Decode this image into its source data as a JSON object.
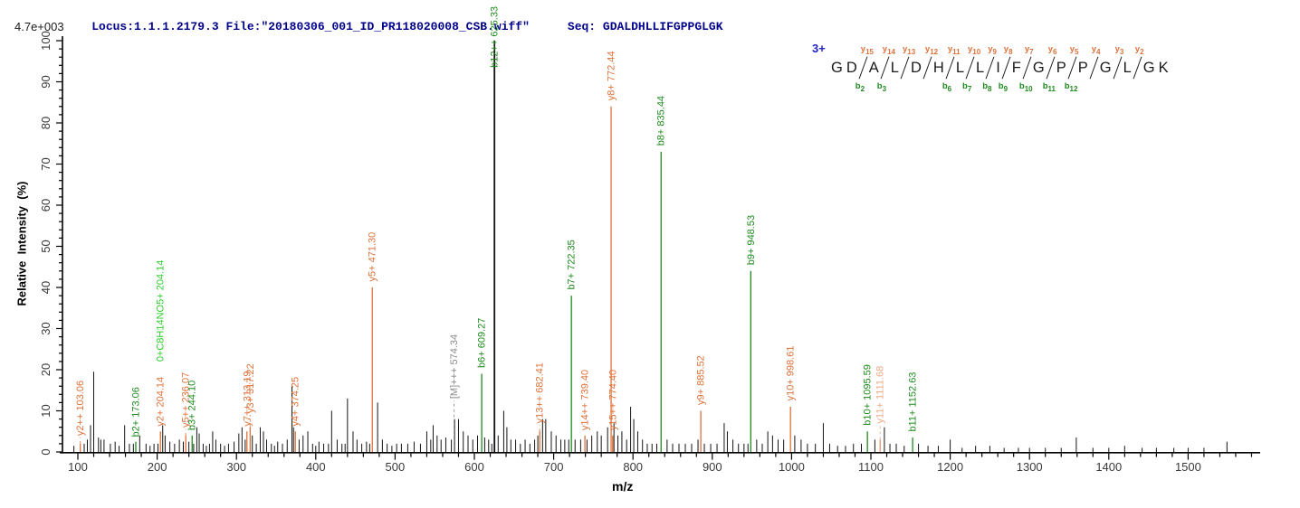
{
  "header": {
    "locus_file": "Locus:1.1.1.2179.3 File:\"20180306_001_ID_PR118020008_CSB.wiff\"",
    "seq_label": "Seq: GDALDHLLIFGPPGLGK"
  },
  "scale_note": "4.7e+003",
  "axes": {
    "x_label": "m/z",
    "y_label": "Relative  Intensity  (%)",
    "x_tick_labels": [
      100,
      200,
      300,
      400,
      500,
      600,
      700,
      800,
      900,
      1000,
      1100,
      1200,
      1300,
      1400,
      1500
    ],
    "y_tick_labels": [
      0,
      10,
      20,
      30,
      40,
      50,
      60,
      70,
      80,
      90,
      100
    ]
  },
  "colors": {
    "y": "#DE7139",
    "b": "#1E8A1E",
    "ox": "#2FCE2F",
    "M": "#8A8A8A",
    "noise": "#141414",
    "axis": "#000000",
    "tick_text": "#3a3a3a",
    "header_text": "#00008B",
    "charge_text": "#2222CC"
  },
  "fragment_map": {
    "charge": "3+",
    "residues": [
      "G",
      "D",
      "A",
      "L",
      "D",
      "H",
      "L",
      "L",
      "I",
      "F",
      "G",
      "P",
      "P",
      "G",
      "L",
      "G",
      "K"
    ],
    "gaps": [
      {
        "after": 2,
        "y": "y15",
        "b": "b2"
      },
      {
        "after": 3,
        "y": "y14",
        "b": "b3"
      },
      {
        "after": 4,
        "y": "y13"
      },
      {
        "after": 5,
        "y": "y12"
      },
      {
        "after": 6,
        "y": "y11",
        "b": "b6"
      },
      {
        "after": 7,
        "y": "y10",
        "b": "b7"
      },
      {
        "after": 8,
        "y": "y9",
        "b": "b8"
      },
      {
        "after": 9,
        "y": "y8",
        "b": "b9"
      },
      {
        "after": 10,
        "y": "y7",
        "b": "b10"
      },
      {
        "after": 11,
        "y": "y6",
        "b": "b11"
      },
      {
        "after": 12,
        "y": "y5",
        "b": "b12"
      },
      {
        "after": 13,
        "y": "y4"
      },
      {
        "after": 14,
        "y": "y3"
      },
      {
        "after": 15,
        "y": "y2"
      }
    ]
  },
  "chart_data": {
    "type": "bar",
    "subtype": "ms2-stick-spectrum",
    "title": "",
    "xlabel": "m/z",
    "ylabel": "Relative Intensity (%)",
    "xlim": [
      78,
      1588
    ],
    "ylim": [
      0,
      100
    ],
    "x_major_step": 100,
    "x_minor_step": 20,
    "y_major_step": 10,
    "y_minor_step": 2,
    "grid": false,
    "base_peak_intensity": "4.7e+003",
    "labeled_peaks": [
      {
        "ion": "y2++",
        "mz": 103.06,
        "intensity": 2,
        "label": "y2++ 103.06",
        "series": "y",
        "ly": 3.5
      },
      {
        "ion": "b2+",
        "mz": 173.06,
        "intensity": 2.5,
        "label": "b2+ 173.06",
        "series": "b",
        "ly": 3.2
      },
      {
        "ion": "y2+",
        "mz": 204.14,
        "intensity": 5,
        "label": "y2+ 204.14",
        "series": "y",
        "ly": 5.8
      },
      {
        "ion": "0+C8H14NO5+",
        "mz": 204.14,
        "intensity": 0,
        "label": "0+C8H14NO5+ 204.14",
        "series": "ox",
        "ly": 21.5,
        "noline": true,
        "no_dash": true
      },
      {
        "ion": "y5++",
        "mz": 236.07,
        "intensity": 4,
        "label": "y5++ 236.07",
        "series": "y",
        "ly": 5.5
      },
      {
        "ion": "b3+",
        "mz": 244.1,
        "intensity": 4,
        "label": "b3+ 244.10",
        "series": "b",
        "ly": 4.8
      },
      {
        "ion": "y7++",
        "mz": 313.19,
        "intensity": 5,
        "label": "y7++ 313.19",
        "series": "y",
        "ly": 5.8
      },
      {
        "ion": "y3+",
        "mz": 317.22,
        "intensity": 6,
        "label": "y3+ 317.22",
        "series": "y",
        "ly": 9
      },
      {
        "ion": "y4+",
        "mz": 374.25,
        "intensity": 5,
        "label": "y4+ 374.25",
        "series": "y",
        "ly": 5.8
      },
      {
        "ion": "y5+",
        "mz": 471.3,
        "intensity": 40,
        "label": "y5+ 471.30",
        "series": "y",
        "ly": 41
      },
      {
        "ion": "[M]+++",
        "mz": 574.34,
        "intensity": 8,
        "label": "[M]+++ 574.34",
        "series": "M",
        "ly": 12.5,
        "noline": true,
        "dash_from": 0.5
      },
      {
        "ion": "b6+",
        "mz": 609.27,
        "intensity": 19,
        "label": "b6+ 609.27",
        "series": "b",
        "ly": 20
      },
      {
        "ion": "b12++",
        "mz": 625.33,
        "intensity": 100,
        "label": "b12++ 625.33",
        "series": "b",
        "ly": 93,
        "line_color": "#111111",
        "line_w": 1.8
      },
      {
        "ion": "y13++",
        "mz": 682.41,
        "intensity": 5,
        "label": "y13++ 682.41",
        "series": "y",
        "ly": 6.5
      },
      {
        "ion": "b7+",
        "mz": 722.35,
        "intensity": 38,
        "label": "b7+ 722.35",
        "series": "b",
        "ly": 39
      },
      {
        "ion": "y14++",
        "mz": 739.4,
        "intensity": 4,
        "label": "y14++ 739.40",
        "series": "y",
        "ly": 4.8
      },
      {
        "ion": "y8+",
        "mz": 772.44,
        "intensity": 84,
        "label": "y8+ 772.44",
        "series": "y",
        "ly": 85
      },
      {
        "ion": "y15++",
        "mz": 774.4,
        "intensity": 4,
        "label": "y15++ 774.40",
        "series": "y",
        "ly": 4.8
      },
      {
        "ion": "b8+",
        "mz": 835.44,
        "intensity": 73,
        "label": "b8+ 835.44",
        "series": "b",
        "ly": 74
      },
      {
        "ion": "y9+",
        "mz": 885.52,
        "intensity": 10,
        "label": "y9+ 885.52",
        "series": "y",
        "ly": 11
      },
      {
        "ion": "b9+",
        "mz": 948.53,
        "intensity": 44,
        "label": "b9+ 948.53",
        "series": "b",
        "ly": 45
      },
      {
        "ion": "y10+",
        "mz": 998.61,
        "intensity": 11,
        "label": "y10+ 998.61",
        "series": "y",
        "ly": 12
      },
      {
        "ion": "b10+",
        "mz": 1095.59,
        "intensity": 5,
        "label": "b10+ 1095.59",
        "series": "b",
        "ly": 6
      },
      {
        "ion": "y11+",
        "mz": 1111.68,
        "intensity": 3,
        "label": "y11+ 1111.68",
        "series": "y",
        "ly": 6.5,
        "faded": true
      },
      {
        "ion": "b11+",
        "mz": 1152.63,
        "intensity": 3.5,
        "label": "b11+ 1152.63",
        "series": "b",
        "ly": 4.5
      }
    ],
    "unlabeled_peaks": [
      [
        95,
        1.5
      ],
      [
        108,
        2
      ],
      [
        112,
        3
      ],
      [
        116,
        6.5
      ],
      [
        120,
        19.5
      ],
      [
        126,
        3.5
      ],
      [
        129,
        3
      ],
      [
        133,
        3
      ],
      [
        141,
        2
      ],
      [
        147,
        2.5
      ],
      [
        152,
        1.5
      ],
      [
        159,
        6.5
      ],
      [
        165,
        2
      ],
      [
        170,
        2
      ],
      [
        178,
        4
      ],
      [
        186,
        2
      ],
      [
        191,
        1.5
      ],
      [
        196,
        2
      ],
      [
        201,
        2
      ],
      [
        207,
        6.5
      ],
      [
        210,
        4
      ],
      [
        216,
        2.5
      ],
      [
        222,
        2
      ],
      [
        228,
        3
      ],
      [
        233,
        2.5
      ],
      [
        240,
        2.5
      ],
      [
        246,
        2
      ],
      [
        250,
        6
      ],
      [
        253,
        4.5
      ],
      [
        258,
        2
      ],
      [
        262,
        1.5
      ],
      [
        266,
        2
      ],
      [
        270,
        5
      ],
      [
        274,
        3
      ],
      [
        280,
        2
      ],
      [
        285,
        1.5
      ],
      [
        290,
        2
      ],
      [
        297,
        2.5
      ],
      [
        303,
        4.5
      ],
      [
        307,
        6
      ],
      [
        311,
        3
      ],
      [
        320,
        4
      ],
      [
        325,
        2
      ],
      [
        330,
        6
      ],
      [
        334,
        5
      ],
      [
        338,
        3
      ],
      [
        344,
        2
      ],
      [
        348,
        1.5
      ],
      [
        352,
        2.5
      ],
      [
        358,
        2
      ],
      [
        364,
        3
      ],
      [
        370,
        16
      ],
      [
        372,
        6
      ],
      [
        379,
        3
      ],
      [
        384,
        4
      ],
      [
        390,
        5
      ],
      [
        396,
        2
      ],
      [
        400,
        1.5
      ],
      [
        404,
        2.5
      ],
      [
        410,
        2
      ],
      [
        416,
        2
      ],
      [
        420,
        10
      ],
      [
        427,
        3
      ],
      [
        433,
        2
      ],
      [
        437,
        2
      ],
      [
        440,
        13
      ],
      [
        447,
        5
      ],
      [
        452,
        3
      ],
      [
        458,
        2
      ],
      [
        464,
        2.5
      ],
      [
        468,
        2
      ],
      [
        478,
        12
      ],
      [
        484,
        3
      ],
      [
        490,
        2
      ],
      [
        496,
        1.5
      ],
      [
        502,
        2
      ],
      [
        508,
        2
      ],
      [
        516,
        2
      ],
      [
        524,
        2.5
      ],
      [
        532,
        2
      ],
      [
        540,
        5
      ],
      [
        545,
        3
      ],
      [
        548,
        6.5
      ],
      [
        553,
        4
      ],
      [
        558,
        3
      ],
      [
        564,
        3.5
      ],
      [
        571,
        3
      ],
      [
        575,
        8
      ],
      [
        580,
        8
      ],
      [
        586,
        5
      ],
      [
        592,
        4
      ],
      [
        598,
        3
      ],
      [
        604,
        4
      ],
      [
        613,
        3.5
      ],
      [
        618,
        3
      ],
      [
        622,
        2
      ],
      [
        630,
        4
      ],
      [
        637,
        10
      ],
      [
        641,
        6
      ],
      [
        646,
        3
      ],
      [
        652,
        3
      ],
      [
        658,
        2
      ],
      [
        664,
        3
      ],
      [
        670,
        2
      ],
      [
        676,
        3
      ],
      [
        680,
        4
      ],
      [
        686,
        8
      ],
      [
        690,
        8
      ],
      [
        697,
        5
      ],
      [
        703,
        4
      ],
      [
        709,
        3
      ],
      [
        714,
        3
      ],
      [
        719,
        3
      ],
      [
        727,
        3
      ],
      [
        734,
        3
      ],
      [
        742,
        3
      ],
      [
        748,
        4
      ],
      [
        755,
        5
      ],
      [
        760,
        4
      ],
      [
        768,
        6
      ],
      [
        776,
        7
      ],
      [
        781,
        4
      ],
      [
        786,
        5
      ],
      [
        792,
        3
      ],
      [
        797,
        11
      ],
      [
        801,
        8
      ],
      [
        806,
        5
      ],
      [
        812,
        3
      ],
      [
        818,
        2
      ],
      [
        824,
        2
      ],
      [
        830,
        2
      ],
      [
        843,
        3
      ],
      [
        850,
        2
      ],
      [
        858,
        2
      ],
      [
        866,
        2
      ],
      [
        874,
        2
      ],
      [
        882,
        3
      ],
      [
        890,
        2
      ],
      [
        898,
        2
      ],
      [
        906,
        2
      ],
      [
        915,
        7
      ],
      [
        919,
        5
      ],
      [
        926,
        3
      ],
      [
        933,
        2
      ],
      [
        940,
        2
      ],
      [
        945,
        2
      ],
      [
        956,
        3
      ],
      [
        963,
        2
      ],
      [
        970,
        5
      ],
      [
        976,
        4
      ],
      [
        983,
        3
      ],
      [
        990,
        3
      ],
      [
        1004,
        4
      ],
      [
        1012,
        3
      ],
      [
        1020,
        2
      ],
      [
        1030,
        2
      ],
      [
        1040,
        7
      ],
      [
        1048,
        2
      ],
      [
        1058,
        1.5
      ],
      [
        1068,
        1.5
      ],
      [
        1078,
        2
      ],
      [
        1088,
        2
      ],
      [
        1105,
        3
      ],
      [
        1117,
        6
      ],
      [
        1124,
        2
      ],
      [
        1132,
        2
      ],
      [
        1142,
        1.5
      ],
      [
        1160,
        2
      ],
      [
        1172,
        1.5
      ],
      [
        1185,
        1.5
      ],
      [
        1200,
        3
      ],
      [
        1215,
        1
      ],
      [
        1232,
        1.5
      ],
      [
        1250,
        1.5
      ],
      [
        1268,
        1
      ],
      [
        1286,
        1
      ],
      [
        1300,
        1
      ],
      [
        1320,
        1
      ],
      [
        1340,
        1
      ],
      [
        1359,
        3.5
      ],
      [
        1380,
        1
      ],
      [
        1400,
        1
      ],
      [
        1420,
        1.5
      ],
      [
        1442,
        1
      ],
      [
        1460,
        1
      ],
      [
        1482,
        1
      ],
      [
        1500,
        1
      ],
      [
        1520,
        1
      ],
      [
        1549,
        2.5
      ]
    ]
  }
}
